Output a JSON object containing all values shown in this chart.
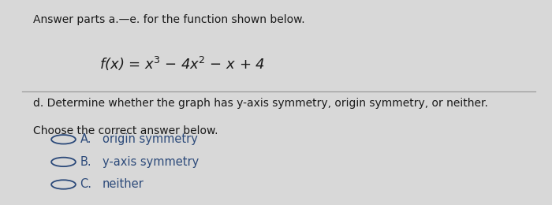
{
  "background_color": "#d8d8d8",
  "header_text": "Answer parts a.—e. for the function shown below.",
  "header_fontsize": 10,
  "function_latex": "f(x) = x$^3$ − 4x$^2$ − x + 4",
  "function_fontsize": 13,
  "part_d_line1": "d. Determine whether the graph has y-axis symmetry, origin symmetry, or neither.",
  "part_d_line2": "Choose the correct answer below.",
  "part_d_fontsize": 10,
  "options": [
    {
      "label": "A.",
      "text": "origin symmetry"
    },
    {
      "label": "B.",
      "text": "y-axis symmetry"
    },
    {
      "label": "C.",
      "text": "neither"
    }
  ],
  "option_fontsize": 10.5,
  "text_color_dark": "#1a1a1a",
  "text_color_option": "#2c4a7a",
  "circle_color": "#2c4a7a",
  "divider_color": "#999999"
}
